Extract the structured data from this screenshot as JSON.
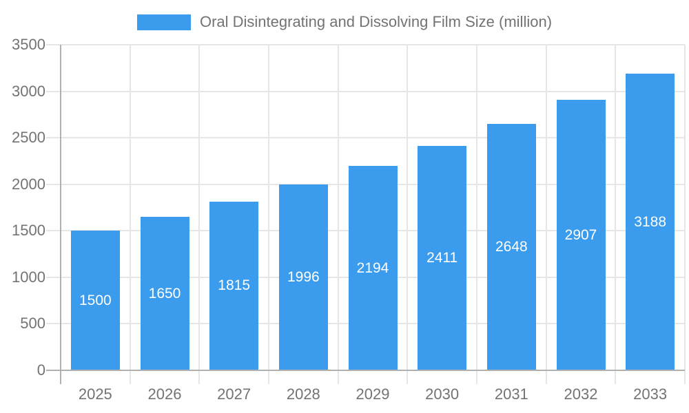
{
  "chart_data": {
    "type": "bar",
    "title": "",
    "legend": {
      "label": "Oral Disintegrating and Dissolving Film Size (million)",
      "position": "top"
    },
    "categories": [
      "2025",
      "2026",
      "2027",
      "2028",
      "2029",
      "2030",
      "2031",
      "2032",
      "2033"
    ],
    "values": [
      1500,
      1650,
      1815,
      1996,
      2194,
      2411,
      2648,
      2907,
      3188
    ],
    "value_labels_shown": true,
    "xlabel": "",
    "ylabel": "",
    "ylim": [
      0,
      3500
    ],
    "yticks": [
      0,
      500,
      1000,
      1500,
      2000,
      2500,
      3000,
      3500
    ],
    "grid": true,
    "colors": {
      "bar": "#3B9CEE",
      "grid": "#E6E6E6",
      "axis": "#B0B0B0",
      "text": "#737373",
      "value_label": "#FFFFFF",
      "background": "#FFFFFF"
    }
  }
}
